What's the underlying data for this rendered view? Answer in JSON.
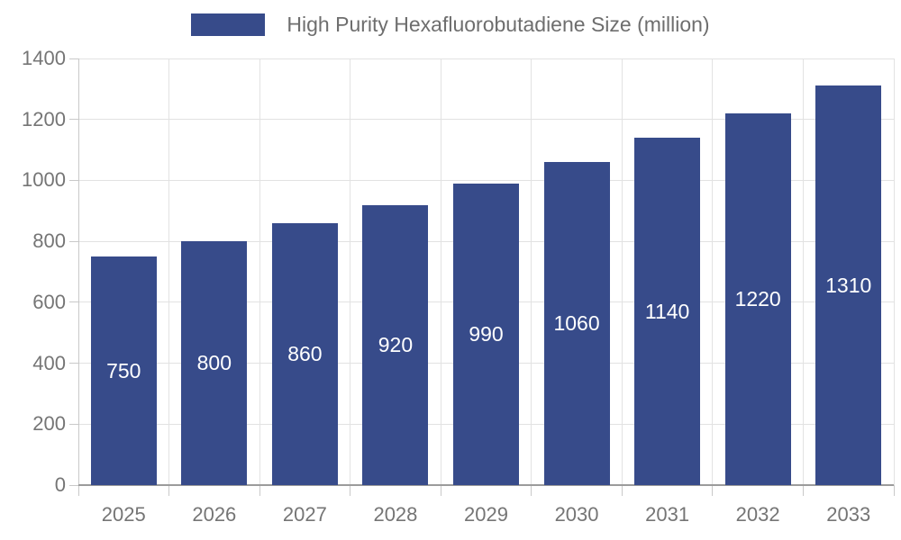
{
  "legend": {
    "label": "High Purity Hexafluorobutadiene Size (million)",
    "swatch_color": "#374b8a"
  },
  "chart_data": {
    "type": "bar",
    "title": "",
    "series_name": "High Purity Hexafluorobutadiene Size (million)",
    "categories": [
      "2025",
      "2026",
      "2027",
      "2028",
      "2029",
      "2030",
      "2031",
      "2032",
      "2033"
    ],
    "values": [
      750,
      800,
      860,
      920,
      990,
      1060,
      1140,
      1220,
      1310
    ],
    "value_labels": [
      "750",
      "800",
      "860",
      "920",
      "990",
      "1060",
      "1140",
      "1220",
      "1310"
    ],
    "xlabel": "",
    "ylabel": "",
    "ylim": [
      0,
      1400
    ],
    "ytick_step": 200,
    "ytick_labels": [
      "0",
      "200",
      "400",
      "600",
      "800",
      "1000",
      "1200",
      "1400"
    ],
    "grid": true,
    "legend_position": "top",
    "bar_color": "#374b8a",
    "value_label_color": "#ffffff",
    "grid_color": "#e2e2e2",
    "axis_color": "#9b9b9b",
    "tick_text_color": "#757575"
  }
}
